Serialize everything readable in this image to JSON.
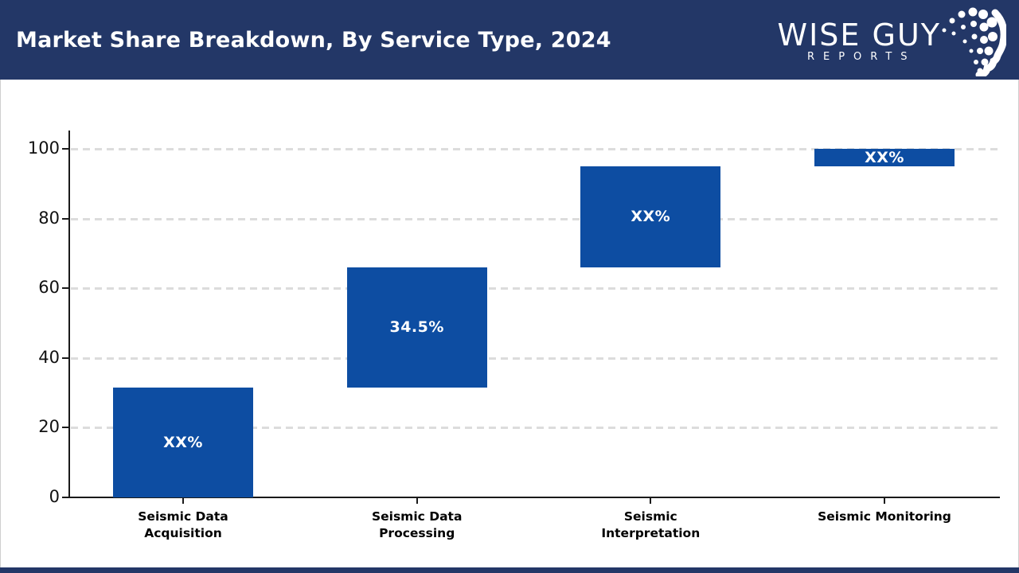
{
  "header": {
    "title": "Market Share Breakdown, By Service Type, 2024",
    "logo": {
      "line1": "WISE GUY",
      "line2": "REPORTS"
    }
  },
  "watermark": {
    "line1": "WISE GUY",
    "line2": "REPORTS"
  },
  "colors": {
    "header_bg": "#233767",
    "bar": "#0d4da2",
    "bar_label": "#ffffff",
    "grid": "#dcdcdc",
    "axis": "#1a1a1a",
    "watermark": "#efefef"
  },
  "chart_data": {
    "type": "bar",
    "subtype": "waterfall",
    "title": "Market Share Breakdown, By Service Type, 2024",
    "categories": [
      [
        "Seismic Data",
        "Acquisition"
      ],
      [
        "Seismic Data",
        "Processing"
      ],
      [
        "Seismic",
        "Interpretation"
      ],
      [
        "Seismic Monitoring"
      ]
    ],
    "segments": [
      {
        "start": 0,
        "end": 31.5,
        "label": "XX%"
      },
      {
        "start": 31.5,
        "end": 66,
        "label": "34.5%"
      },
      {
        "start": 66,
        "end": 95,
        "label": "XX%"
      },
      {
        "start": 95,
        "end": 100,
        "label": "XX%"
      }
    ],
    "ylim": [
      0,
      100
    ],
    "yticks": [
      0,
      20,
      40,
      60,
      80,
      100
    ],
    "xlabel": "",
    "ylabel": "",
    "legend": "none",
    "grid": "dashed-horizontal"
  }
}
